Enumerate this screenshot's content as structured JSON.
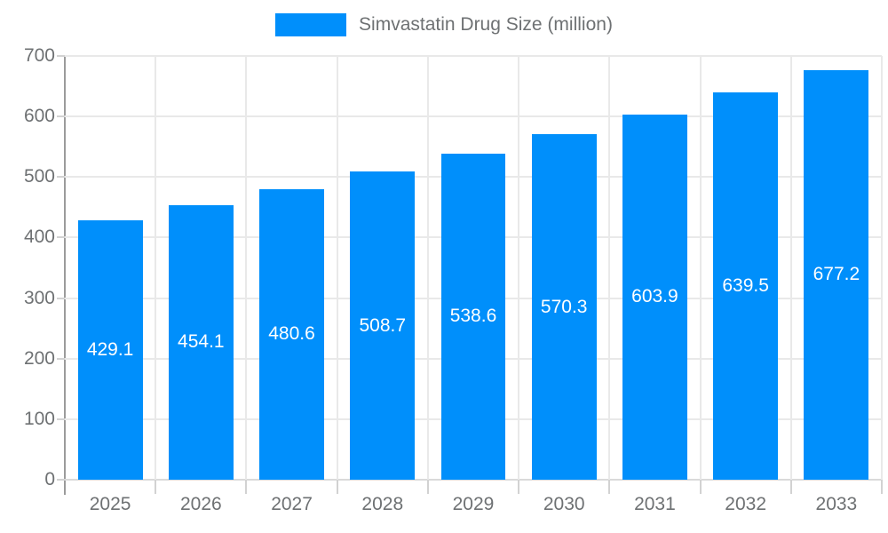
{
  "legend": {
    "label": "Simvastatin Drug Size (million)"
  },
  "colors": {
    "bar": "#008FFB",
    "grid": "#e9e9e9",
    "axis_line": "#9b9b9b",
    "x_axis_line": "#dadada",
    "tick": "#d2d2d2",
    "label_text": "#6e7173",
    "value_label": "#ffffff",
    "background": "#ffffff"
  },
  "chart_data": {
    "type": "bar",
    "title": "Simvastatin Drug Size (million)",
    "categories": [
      "2025",
      "2026",
      "2027",
      "2028",
      "2029",
      "2030",
      "2031",
      "2032",
      "2033"
    ],
    "series": [
      {
        "name": "Simvastatin Drug Size (million)",
        "values": [
          429.1,
          454.1,
          480.6,
          508.7,
          538.6,
          570.3,
          603.9,
          639.5,
          677.2
        ]
      }
    ],
    "xlabel": "",
    "ylabel": "",
    "ylim": [
      0,
      700
    ],
    "yticks": [
      0,
      100,
      200,
      300,
      400,
      500,
      600,
      700
    ],
    "grid": true,
    "legend_position": "top",
    "value_labels_inside_bars": true
  }
}
